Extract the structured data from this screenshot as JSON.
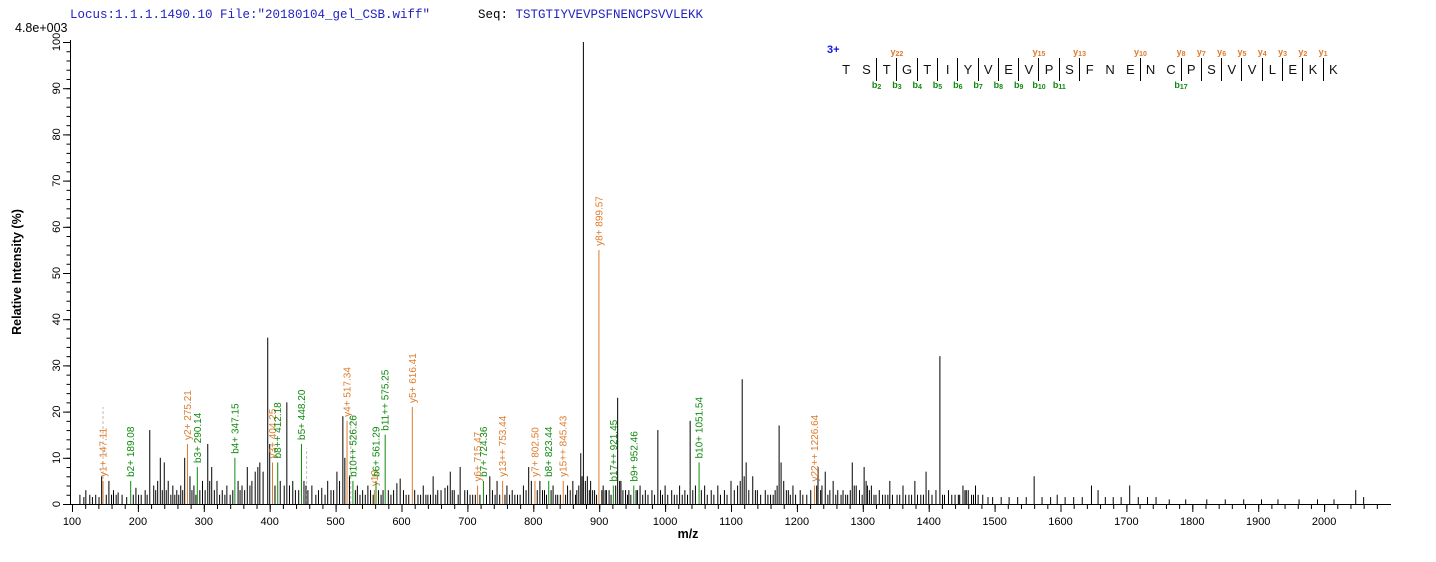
{
  "header": {
    "locus_file": "Locus:1.1.1.1490.10 File:\"20180104_gel_CSB.wiff\"",
    "seq_label": "Seq: ",
    "sequence": "TSTGTIYVEVPSFNENCPSVVLEKK"
  },
  "colors": {
    "y_ion": "#dd7b2d",
    "b_ion": "#0e8a0e",
    "peak": "#000000",
    "dashed_marker": "#c7bcae",
    "header_blue": "#2222c2",
    "charge_blue": "#1515e0"
  },
  "fragment_map": {
    "charge": "3+",
    "residues": [
      "T",
      "S",
      "T",
      "G",
      "T",
      "I",
      "Y",
      "V",
      "E",
      "V",
      "P",
      "S",
      "F",
      "N",
      "E",
      "N",
      "C",
      "P",
      "S",
      "V",
      "V",
      "L",
      "E",
      "K",
      "K"
    ],
    "gaps": [
      {
        "after": 2,
        "b": "2"
      },
      {
        "after": 3,
        "b": "3",
        "y": "22"
      },
      {
        "after": 4,
        "b": "4"
      },
      {
        "after": 5,
        "b": "5"
      },
      {
        "after": 6,
        "b": "6"
      },
      {
        "after": 7,
        "b": "7"
      },
      {
        "after": 8,
        "b": "8"
      },
      {
        "after": 9,
        "b": "9"
      },
      {
        "after": 10,
        "b": "10",
        "y": "15"
      },
      {
        "after": 11,
        "b": "11"
      },
      {
        "after": 12,
        "y": "13"
      },
      {
        "after": 15,
        "y": "10"
      },
      {
        "after": 17,
        "b": "17",
        "y": "8"
      },
      {
        "after": 18,
        "y": "7"
      },
      {
        "after": 19,
        "y": "6"
      },
      {
        "after": 20,
        "y": "5"
      },
      {
        "after": 21,
        "y": "4"
      },
      {
        "after": 22,
        "y": "3"
      },
      {
        "after": 23,
        "y": "2"
      },
      {
        "after": 24,
        "y": "1"
      }
    ]
  },
  "chart_data": {
    "type": "bar",
    "subtype": "centroided MS/MS spectrum (stick plot)",
    "title": "",
    "xlabel": "m/z",
    "ylabel": "Relative  Intensity (%)",
    "xlim": [
      100,
      2100
    ],
    "ylim": [
      0,
      100
    ],
    "x_major_ticks": [
      100,
      200,
      300,
      400,
      500,
      600,
      700,
      800,
      900,
      1000,
      1100,
      1200,
      1300,
      1400,
      1500,
      1600,
      1700,
      1800,
      1900,
      2000
    ],
    "x_minor_step": 20,
    "x_minor_end": 2080,
    "y_major_ticks": [
      0,
      10,
      20,
      30,
      40,
      50,
      60,
      70,
      80,
      90,
      100
    ],
    "y_minor_step": 2,
    "base_peak_intensity": "4.8e+003",
    "legend": "orange = y ions, green = b ions, black = unassigned peaks",
    "y_ion_peaks": [
      {
        "label": "y1+ 147.11",
        "mz": 147.11,
        "h": 5
      },
      {
        "label": "y2+ 275.21",
        "mz": 275.21,
        "h": 13
      },
      {
        "label": "y3+ 404.25",
        "mz": 404.25,
        "h": 9
      },
      {
        "label": "y4+ 517.34",
        "mz": 517.34,
        "h": 18
      },
      {
        "label": "y10",
        "mz": 558.8,
        "h": 3
      },
      {
        "label": "y5+ 616.41",
        "mz": 616.41,
        "h": 21
      },
      {
        "label": "y6+ 715.47",
        "mz": 715.47,
        "h": 4
      },
      {
        "label": "y13++ 753.44",
        "mz": 753.44,
        "h": 5
      },
      {
        "label": "y7+ 802.50",
        "mz": 802.5,
        "h": 5
      },
      {
        "label": "y15++ 845.43",
        "mz": 845.43,
        "h": 5
      },
      {
        "label": "y8+ 899.57",
        "mz": 899.57,
        "h": 55
      },
      {
        "label": "y22++ 1226.64",
        "mz": 1226.64,
        "h": 4
      }
    ],
    "b_ion_peaks": [
      {
        "label": "b2+ 189.08",
        "mz": 189.08,
        "h": 5
      },
      {
        "label": "b3+ 290.14",
        "mz": 290.14,
        "h": 8
      },
      {
        "label": "b4+ 347.15",
        "mz": 347.15,
        "h": 10
      },
      {
        "label": "b8++ 412.18",
        "mz": 412.18,
        "h": 9
      },
      {
        "label": "b5+ 448.20",
        "mz": 448.2,
        "h": 13
      },
      {
        "label": "b10++ 526.26",
        "mz": 526.26,
        "h": 5
      },
      {
        "label": "b6+ 561.29",
        "mz": 561.29,
        "h": 5
      },
      {
        "label": "b11++ 575.25",
        "mz": 575.25,
        "h": 15
      },
      {
        "label": "b7+ 724.36",
        "mz": 724.36,
        "h": 5
      },
      {
        "label": "b8+ 823.44",
        "mz": 823.44,
        "h": 5
      },
      {
        "label": "b17++ 921.45",
        "mz": 921.45,
        "h": 4
      },
      {
        "label": "b9+ 952.46",
        "mz": 952.46,
        "h": 4
      },
      {
        "label": "b10+ 1051.54",
        "mz": 1051.54,
        "h": 9
      }
    ],
    "dashed_markers": [
      [
        147.11,
        21
      ],
      [
        456,
        12
      ],
      [
        523,
        19
      ]
    ],
    "unlabeled_peaks": [
      [
        112,
        2
      ],
      [
        118,
        1.5
      ],
      [
        121,
        3
      ],
      [
        127,
        2
      ],
      [
        131,
        1.5
      ],
      [
        136,
        2
      ],
      [
        141,
        1.5
      ],
      [
        145,
        6
      ],
      [
        152,
        2
      ],
      [
        156,
        5
      ],
      [
        160,
        2
      ],
      [
        163,
        3
      ],
      [
        167,
        2
      ],
      [
        170,
        2.5
      ],
      [
        176,
        2
      ],
      [
        183,
        1.5
      ],
      [
        193,
        2
      ],
      [
        197,
        3.5
      ],
      [
        201,
        2
      ],
      [
        205,
        2
      ],
      [
        211,
        3
      ],
      [
        214,
        2
      ],
      [
        218,
        16
      ],
      [
        224,
        4
      ],
      [
        227,
        3
      ],
      [
        230,
        5
      ],
      [
        234,
        10
      ],
      [
        237,
        3
      ],
      [
        240,
        9
      ],
      [
        243,
        3
      ],
      [
        246,
        5
      ],
      [
        250,
        2
      ],
      [
        253,
        4
      ],
      [
        256,
        2
      ],
      [
        259,
        3
      ],
      [
        262,
        2
      ],
      [
        265,
        4
      ],
      [
        268,
        3
      ],
      [
        271,
        10
      ],
      [
        279,
        6
      ],
      [
        282,
        3
      ],
      [
        285,
        4
      ],
      [
        288,
        2
      ],
      [
        294,
        3
      ],
      [
        298,
        5
      ],
      [
        302,
        3
      ],
      [
        306,
        13
      ],
      [
        309,
        5
      ],
      [
        312,
        8
      ],
      [
        316,
        3
      ],
      [
        320,
        5
      ],
      [
        324,
        2
      ],
      [
        328,
        3
      ],
      [
        332,
        2
      ],
      [
        335,
        4
      ],
      [
        340,
        2
      ],
      [
        344,
        3
      ],
      [
        352,
        5
      ],
      [
        355,
        3
      ],
      [
        358,
        4
      ],
      [
        362,
        3
      ],
      [
        366,
        8
      ],
      [
        370,
        4
      ],
      [
        373,
        5
      ],
      [
        378,
        7
      ],
      [
        382,
        8
      ],
      [
        385,
        9
      ],
      [
        390,
        7
      ],
      [
        397,
        36
      ],
      [
        400,
        13
      ],
      [
        408,
        4
      ],
      [
        416,
        5
      ],
      [
        422,
        4
      ],
      [
        426,
        22
      ],
      [
        430,
        4
      ],
      [
        435,
        5
      ],
      [
        439,
        3
      ],
      [
        444,
        3
      ],
      [
        452,
        5
      ],
      [
        455,
        4
      ],
      [
        458,
        3
      ],
      [
        464,
        4
      ],
      [
        470,
        2
      ],
      [
        474,
        3
      ],
      [
        479,
        3.5
      ],
      [
        484,
        2
      ],
      [
        488,
        5
      ],
      [
        493,
        3
      ],
      [
        497,
        3
      ],
      [
        502,
        7
      ],
      [
        506,
        5
      ],
      [
        511,
        19
      ],
      [
        514,
        10
      ],
      [
        521,
        6
      ],
      [
        530,
        3
      ],
      [
        533,
        4
      ],
      [
        537,
        2
      ],
      [
        541,
        3
      ],
      [
        545,
        2
      ],
      [
        549,
        4
      ],
      [
        553,
        3
      ],
      [
        557,
        2
      ],
      [
        565,
        3
      ],
      [
        569,
        2
      ],
      [
        572,
        3
      ],
      [
        580,
        3
      ],
      [
        584,
        2
      ],
      [
        588,
        3
      ],
      [
        593,
        4.5
      ],
      [
        598,
        5.5
      ],
      [
        603,
        3
      ],
      [
        607,
        2
      ],
      [
        611,
        2
      ],
      [
        620,
        3
      ],
      [
        625,
        2
      ],
      [
        629,
        2
      ],
      [
        633,
        4
      ],
      [
        637,
        2
      ],
      [
        640,
        2
      ],
      [
        644,
        2
      ],
      [
        648,
        6
      ],
      [
        652,
        2
      ],
      [
        655,
        3
      ],
      [
        660,
        3
      ],
      [
        666,
        3.5
      ],
      [
        670,
        4
      ],
      [
        674,
        7
      ],
      [
        677,
        3
      ],
      [
        680,
        3
      ],
      [
        686,
        2
      ],
      [
        689,
        8
      ],
      [
        696,
        3
      ],
      [
        700,
        3
      ],
      [
        704,
        2
      ],
      [
        708,
        2
      ],
      [
        712,
        2
      ],
      [
        719,
        2
      ],
      [
        729,
        2
      ],
      [
        734,
        6
      ],
      [
        738,
        3
      ],
      [
        742,
        2
      ],
      [
        745,
        5
      ],
      [
        749,
        2
      ],
      [
        757,
        2
      ],
      [
        760,
        4
      ],
      [
        764,
        2
      ],
      [
        768,
        3
      ],
      [
        772,
        2
      ],
      [
        776,
        2
      ],
      [
        780,
        2
      ],
      [
        785,
        4
      ],
      [
        789,
        3
      ],
      [
        793,
        8
      ],
      [
        797,
        5
      ],
      [
        806,
        3
      ],
      [
        810,
        5
      ],
      [
        814,
        3
      ],
      [
        817,
        3
      ],
      [
        820,
        2
      ],
      [
        827,
        3
      ],
      [
        830,
        4
      ],
      [
        834,
        2
      ],
      [
        837,
        2
      ],
      [
        841,
        2
      ],
      [
        849,
        2
      ],
      [
        852,
        4
      ],
      [
        856,
        3
      ],
      [
        860,
        5
      ],
      [
        864,
        2
      ],
      [
        866,
        3
      ],
      [
        869,
        4
      ],
      [
        872,
        11
      ],
      [
        874,
        6
      ],
      [
        876,
        100
      ],
      [
        879,
        5
      ],
      [
        882,
        6
      ],
      [
        885,
        3
      ],
      [
        887,
        5
      ],
      [
        890,
        3
      ],
      [
        893,
        3
      ],
      [
        896,
        2
      ],
      [
        904,
        3
      ],
      [
        906,
        4
      ],
      [
        909,
        3
      ],
      [
        911,
        3
      ],
      [
        915,
        3
      ],
      [
        918,
        2
      ],
      [
        925,
        4
      ],
      [
        928,
        23
      ],
      [
        931,
        5
      ],
      [
        933,
        5
      ],
      [
        936,
        3
      ],
      [
        940,
        3
      ],
      [
        943,
        2
      ],
      [
        945,
        3
      ],
      [
        948,
        2
      ],
      [
        956,
        3
      ],
      [
        958,
        3
      ],
      [
        962,
        4
      ],
      [
        966,
        2
      ],
      [
        970,
        3
      ],
      [
        974,
        2
      ],
      [
        980,
        3
      ],
      [
        984,
        2
      ],
      [
        989,
        16
      ],
      [
        993,
        3
      ],
      [
        996,
        2
      ],
      [
        1000,
        4
      ],
      [
        1004,
        2
      ],
      [
        1010,
        3
      ],
      [
        1014,
        2
      ],
      [
        1018,
        2
      ],
      [
        1022,
        4
      ],
      [
        1026,
        2
      ],
      [
        1030,
        3
      ],
      [
        1034,
        2
      ],
      [
        1038,
        18
      ],
      [
        1042,
        3
      ],
      [
        1046,
        4
      ],
      [
        1055,
        3
      ],
      [
        1060,
        4
      ],
      [
        1064,
        2
      ],
      [
        1070,
        3
      ],
      [
        1074,
        2
      ],
      [
        1080,
        4
      ],
      [
        1084,
        2
      ],
      [
        1090,
        3
      ],
      [
        1094,
        2
      ],
      [
        1100,
        5
      ],
      [
        1105,
        3
      ],
      [
        1110,
        4
      ],
      [
        1114,
        5
      ],
      [
        1117,
        27
      ],
      [
        1120,
        6
      ],
      [
        1123,
        9
      ],
      [
        1127,
        3
      ],
      [
        1133,
        6
      ],
      [
        1137,
        3
      ],
      [
        1140,
        3
      ],
      [
        1145,
        2
      ],
      [
        1152,
        3
      ],
      [
        1156,
        2
      ],
      [
        1160,
        2
      ],
      [
        1164,
        2
      ],
      [
        1167,
        3
      ],
      [
        1170,
        4
      ],
      [
        1173,
        17
      ],
      [
        1176,
        9
      ],
      [
        1180,
        5
      ],
      [
        1184,
        3
      ],
      [
        1187,
        3
      ],
      [
        1190,
        2
      ],
      [
        1194,
        4
      ],
      [
        1198,
        2
      ],
      [
        1205,
        3
      ],
      [
        1209,
        2
      ],
      [
        1215,
        2
      ],
      [
        1221,
        3
      ],
      [
        1230,
        4
      ],
      [
        1232,
        8
      ],
      [
        1236,
        3
      ],
      [
        1238,
        4
      ],
      [
        1243,
        7
      ],
      [
        1247,
        2
      ],
      [
        1250,
        3
      ],
      [
        1255,
        5
      ],
      [
        1259,
        2
      ],
      [
        1262,
        3
      ],
      [
        1267,
        2
      ],
      [
        1270,
        3
      ],
      [
        1274,
        2
      ],
      [
        1277,
        2
      ],
      [
        1281,
        3
      ],
      [
        1284,
        9
      ],
      [
        1287,
        4
      ],
      [
        1290,
        4
      ],
      [
        1295,
        3
      ],
      [
        1299,
        2
      ],
      [
        1302,
        8
      ],
      [
        1305,
        5
      ],
      [
        1307,
        4
      ],
      [
        1310,
        3
      ],
      [
        1313,
        4
      ],
      [
        1317,
        2
      ],
      [
        1320,
        2
      ],
      [
        1325,
        3
      ],
      [
        1330,
        2
      ],
      [
        1334,
        2
      ],
      [
        1338,
        2
      ],
      [
        1341,
        5
      ],
      [
        1345,
        2
      ],
      [
        1352,
        2
      ],
      [
        1356,
        2
      ],
      [
        1361,
        4
      ],
      [
        1365,
        2
      ],
      [
        1370,
        2
      ],
      [
        1374,
        2
      ],
      [
        1379,
        5
      ],
      [
        1383,
        2
      ],
      [
        1388,
        2
      ],
      [
        1392,
        2
      ],
      [
        1396,
        7
      ],
      [
        1400,
        3
      ],
      [
        1405,
        2
      ],
      [
        1411,
        3
      ],
      [
        1417,
        32
      ],
      [
        1421,
        2
      ],
      [
        1424,
        2
      ],
      [
        1430,
        3
      ],
      [
        1435,
        2
      ],
      [
        1440,
        2
      ],
      [
        1445,
        2
      ],
      [
        1447,
        2
      ],
      [
        1452,
        4
      ],
      [
        1455,
        3
      ],
      [
        1457,
        3
      ],
      [
        1460,
        3
      ],
      [
        1465,
        2
      ],
      [
        1468,
        2
      ],
      [
        1471,
        4
      ],
      [
        1475,
        2
      ],
      [
        1482,
        2
      ],
      [
        1490,
        1.5
      ],
      [
        1497,
        1.5
      ],
      [
        1510,
        1.5
      ],
      [
        1522,
        1.5
      ],
      [
        1535,
        1.5
      ],
      [
        1548,
        1.5
      ],
      [
        1560,
        6
      ],
      [
        1572,
        1.5
      ],
      [
        1585,
        1.5
      ],
      [
        1595,
        2
      ],
      [
        1607,
        1.5
      ],
      [
        1620,
        1.5
      ],
      [
        1633,
        1.5
      ],
      [
        1647,
        4
      ],
      [
        1657,
        3
      ],
      [
        1668,
        1.5
      ],
      [
        1680,
        1.5
      ],
      [
        1692,
        1.5
      ],
      [
        1705,
        4
      ],
      [
        1718,
        1.5
      ],
      [
        1732,
        1.5
      ],
      [
        1745,
        1.5
      ],
      [
        1765,
        1
      ],
      [
        1790,
        1
      ],
      [
        1822,
        1
      ],
      [
        1850,
        1
      ],
      [
        1878,
        1
      ],
      [
        1905,
        1
      ],
      [
        1930,
        1
      ],
      [
        1962,
        1
      ],
      [
        1990,
        1
      ],
      [
        2015,
        1
      ],
      [
        2048,
        3
      ],
      [
        2060,
        1.5
      ]
    ]
  }
}
